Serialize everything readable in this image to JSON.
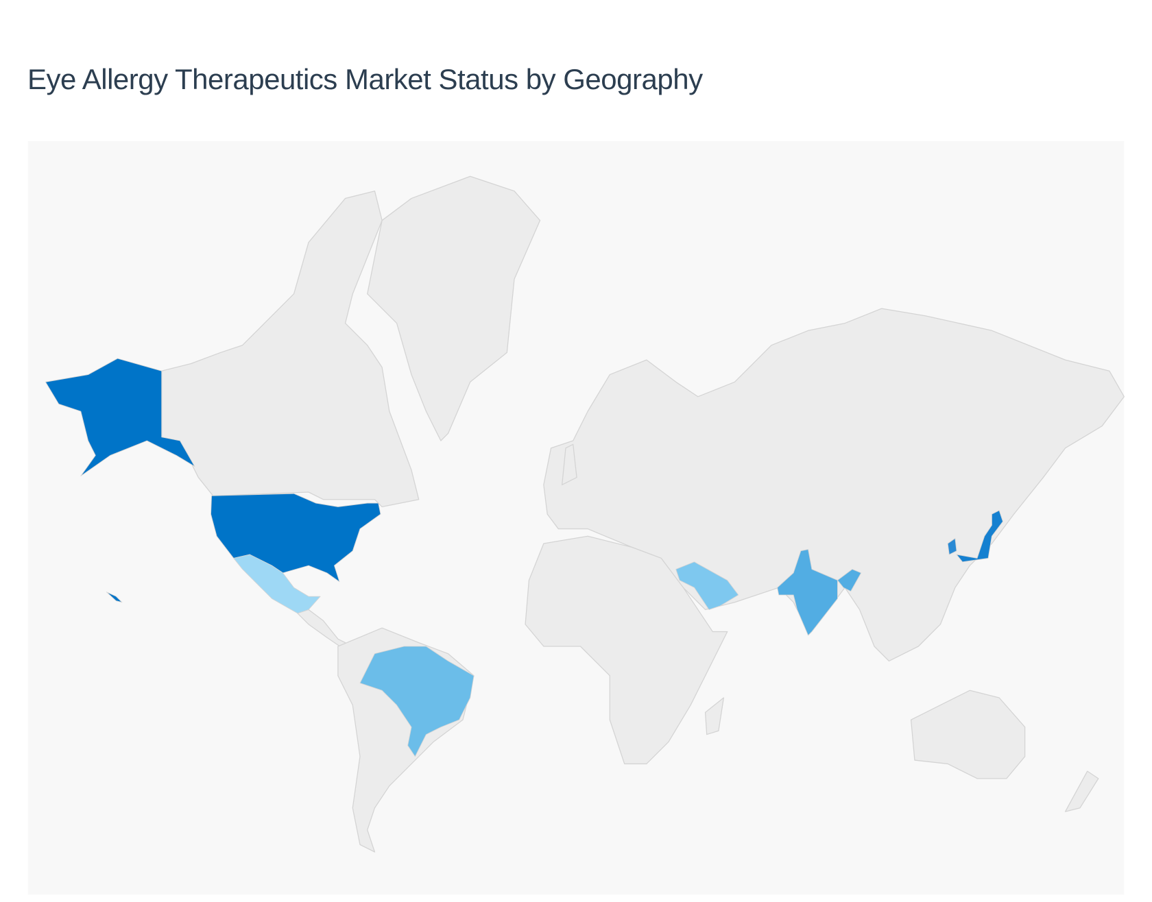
{
  "header": {
    "title": "Eye Allergy Therapeutics Market Status by Geography"
  },
  "map": {
    "background_color": "#f8f8f8",
    "land_color": "#ececec",
    "border_color": "#d4d4d4",
    "highlighted_regions": [
      {
        "id": "united-states",
        "color": "#0074c8"
      },
      {
        "id": "japan",
        "color": "#1580d0"
      },
      {
        "id": "south-korea",
        "color": "#2a8ad4"
      },
      {
        "id": "india",
        "color": "#52ade3"
      },
      {
        "id": "brazil",
        "color": "#6bbde9"
      },
      {
        "id": "saudi-arabia",
        "color": "#7ec8ef"
      },
      {
        "id": "mexico",
        "color": "#9ed8f5"
      }
    ]
  }
}
